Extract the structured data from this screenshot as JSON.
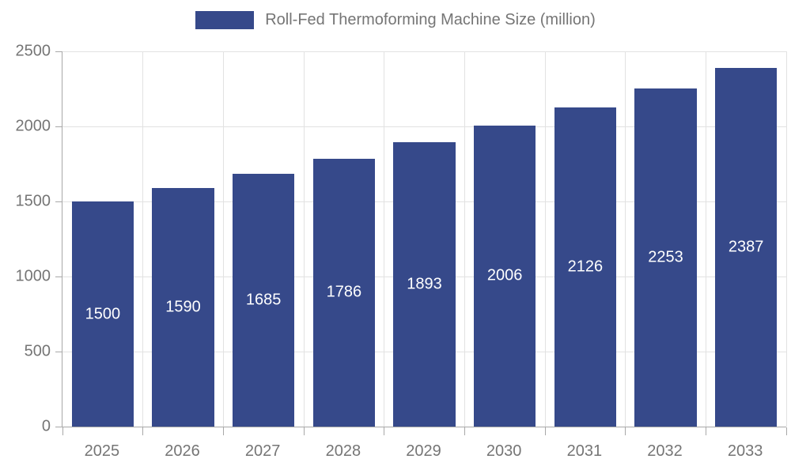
{
  "legend": {
    "label": "Roll-Fed Thermoforming Machine Size (million)"
  },
  "colors": {
    "bar": "#36498A",
    "grid": "#e2e2e2",
    "axis": "#a8a8a8",
    "text": "#757575",
    "value_label": "#ffffff",
    "background": "#ffffff"
  },
  "chart_data": {
    "type": "bar",
    "title": "Roll-Fed Thermoforming Machine Size (million)",
    "categories": [
      "2025",
      "2026",
      "2027",
      "2028",
      "2029",
      "2030",
      "2031",
      "2032",
      "2033"
    ],
    "values": [
      1500,
      1590,
      1685,
      1786,
      1893,
      2006,
      2126,
      2253,
      2387
    ],
    "xlabel": "",
    "ylabel": "",
    "ylim": [
      0,
      2500
    ],
    "y_ticks": [
      0,
      500,
      1000,
      1500,
      2000,
      2500
    ],
    "grid": true,
    "legend_position": "top",
    "value_labels": "inside-center",
    "bar_width_fraction": 0.77
  }
}
